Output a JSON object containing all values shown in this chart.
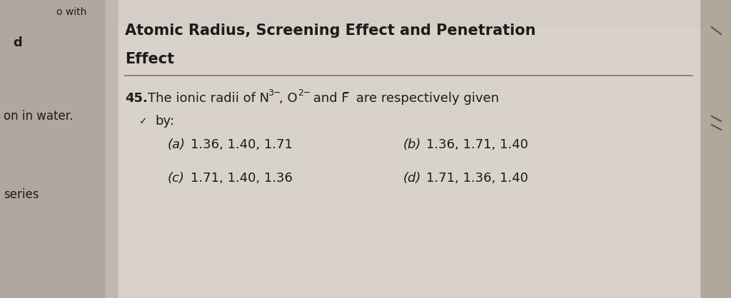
{
  "bg_color_page": "#cec8c0",
  "bg_color_left_strip": "#b8b0a8",
  "bg_color_right_strip": "#c0b8b0",
  "title_line1": "Atomic Radius, Screening Effect and Penetration",
  "title_line2": "Effect",
  "question_number": "45.",
  "option_a_label": "(a)",
  "option_a_text": "1.36, 1.40, 1.71",
  "option_b_label": "(b)",
  "option_b_text": "1.36, 1.71, 1.40",
  "option_c_label": "(c)",
  "option_c_text": "1.71, 1.40, 1.36",
  "option_d_label": "(d)",
  "option_d_text": "1.71, 1.36, 1.40",
  "left_text_d": "d",
  "left_text_water": "on in water.",
  "left_text_series": "series",
  "top_text": "o with",
  "text_color": "#1c1c1c",
  "line_color": "#807870",
  "title_fontsize": 15,
  "body_fontsize": 13,
  "option_fontsize": 13
}
